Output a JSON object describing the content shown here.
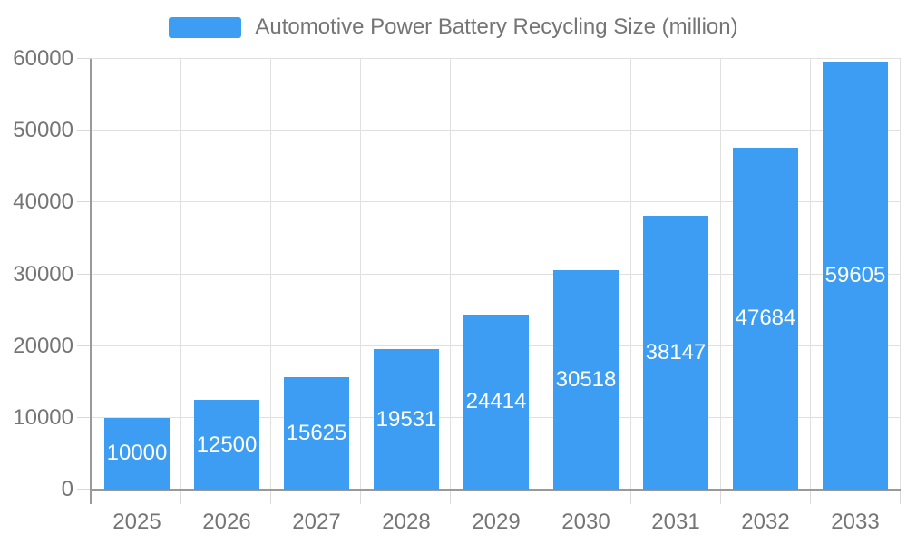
{
  "legend": {
    "label": "Automotive Power Battery Recycling Size (million)"
  },
  "chart_data": {
    "type": "bar",
    "title": "",
    "xlabel": "",
    "ylabel": "",
    "categories": [
      "2025",
      "2026",
      "2027",
      "2028",
      "2029",
      "2030",
      "2031",
      "2032",
      "2033"
    ],
    "series": [
      {
        "name": "Automotive Power Battery Recycling Size (million)",
        "values": [
          10000,
          12500,
          15625,
          19531,
          24414,
          30518,
          38147,
          47684,
          59605
        ]
      }
    ],
    "ylim": [
      0,
      60000
    ],
    "y_ticks": [
      0,
      10000,
      20000,
      30000,
      40000,
      50000,
      60000
    ],
    "grid": true,
    "legend_position": "top-center",
    "value_label_position": "inside-center",
    "colors": {
      "bar": "#3D9DF3",
      "axis_line": "#999999",
      "grid_line": "#E0E0E0",
      "tick_line": "#D9D9D9",
      "axis_text": "#757575",
      "value_text": "#FFFFFF",
      "background": "#FFFFFF"
    }
  }
}
